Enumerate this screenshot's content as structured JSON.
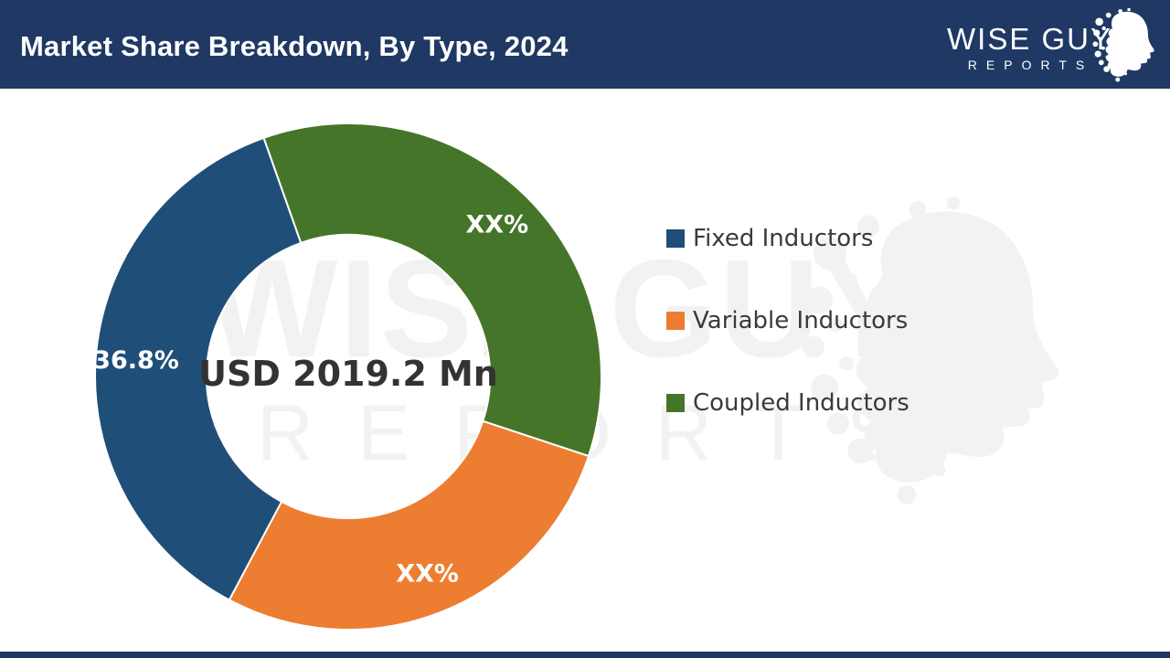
{
  "header": {
    "title": "Market Share Breakdown, By Type, 2024",
    "bg_color": "#1F3864",
    "logo": {
      "line1": "WISE GUY",
      "line2": "REPORTS"
    }
  },
  "chart_data": {
    "type": "pie",
    "subtype": "donut",
    "title": "Market Share Breakdown, By Type, 2024",
    "labels": [
      "Fixed Inductors",
      "Variable Inductors",
      "Coupled Inductors"
    ],
    "values": [
      36.8,
      27.7,
      35.5
    ],
    "display_labels": [
      "36.8%",
      "XX%",
      "XX%"
    ],
    "colors": [
      "#1F4E79",
      "#ED7D31",
      "#457528"
    ],
    "center_label": "USD 2019.2 Mn",
    "start_angle_deg": 109.5,
    "direction": "counterclockwise",
    "donut_hole_ratio": 0.56,
    "label_distance_ratio": 0.84,
    "legend_position": "right",
    "slice_border_color": "#FFFFFF"
  },
  "watermark": {
    "line1": "WISE GUY",
    "line2": "REPORTS"
  }
}
